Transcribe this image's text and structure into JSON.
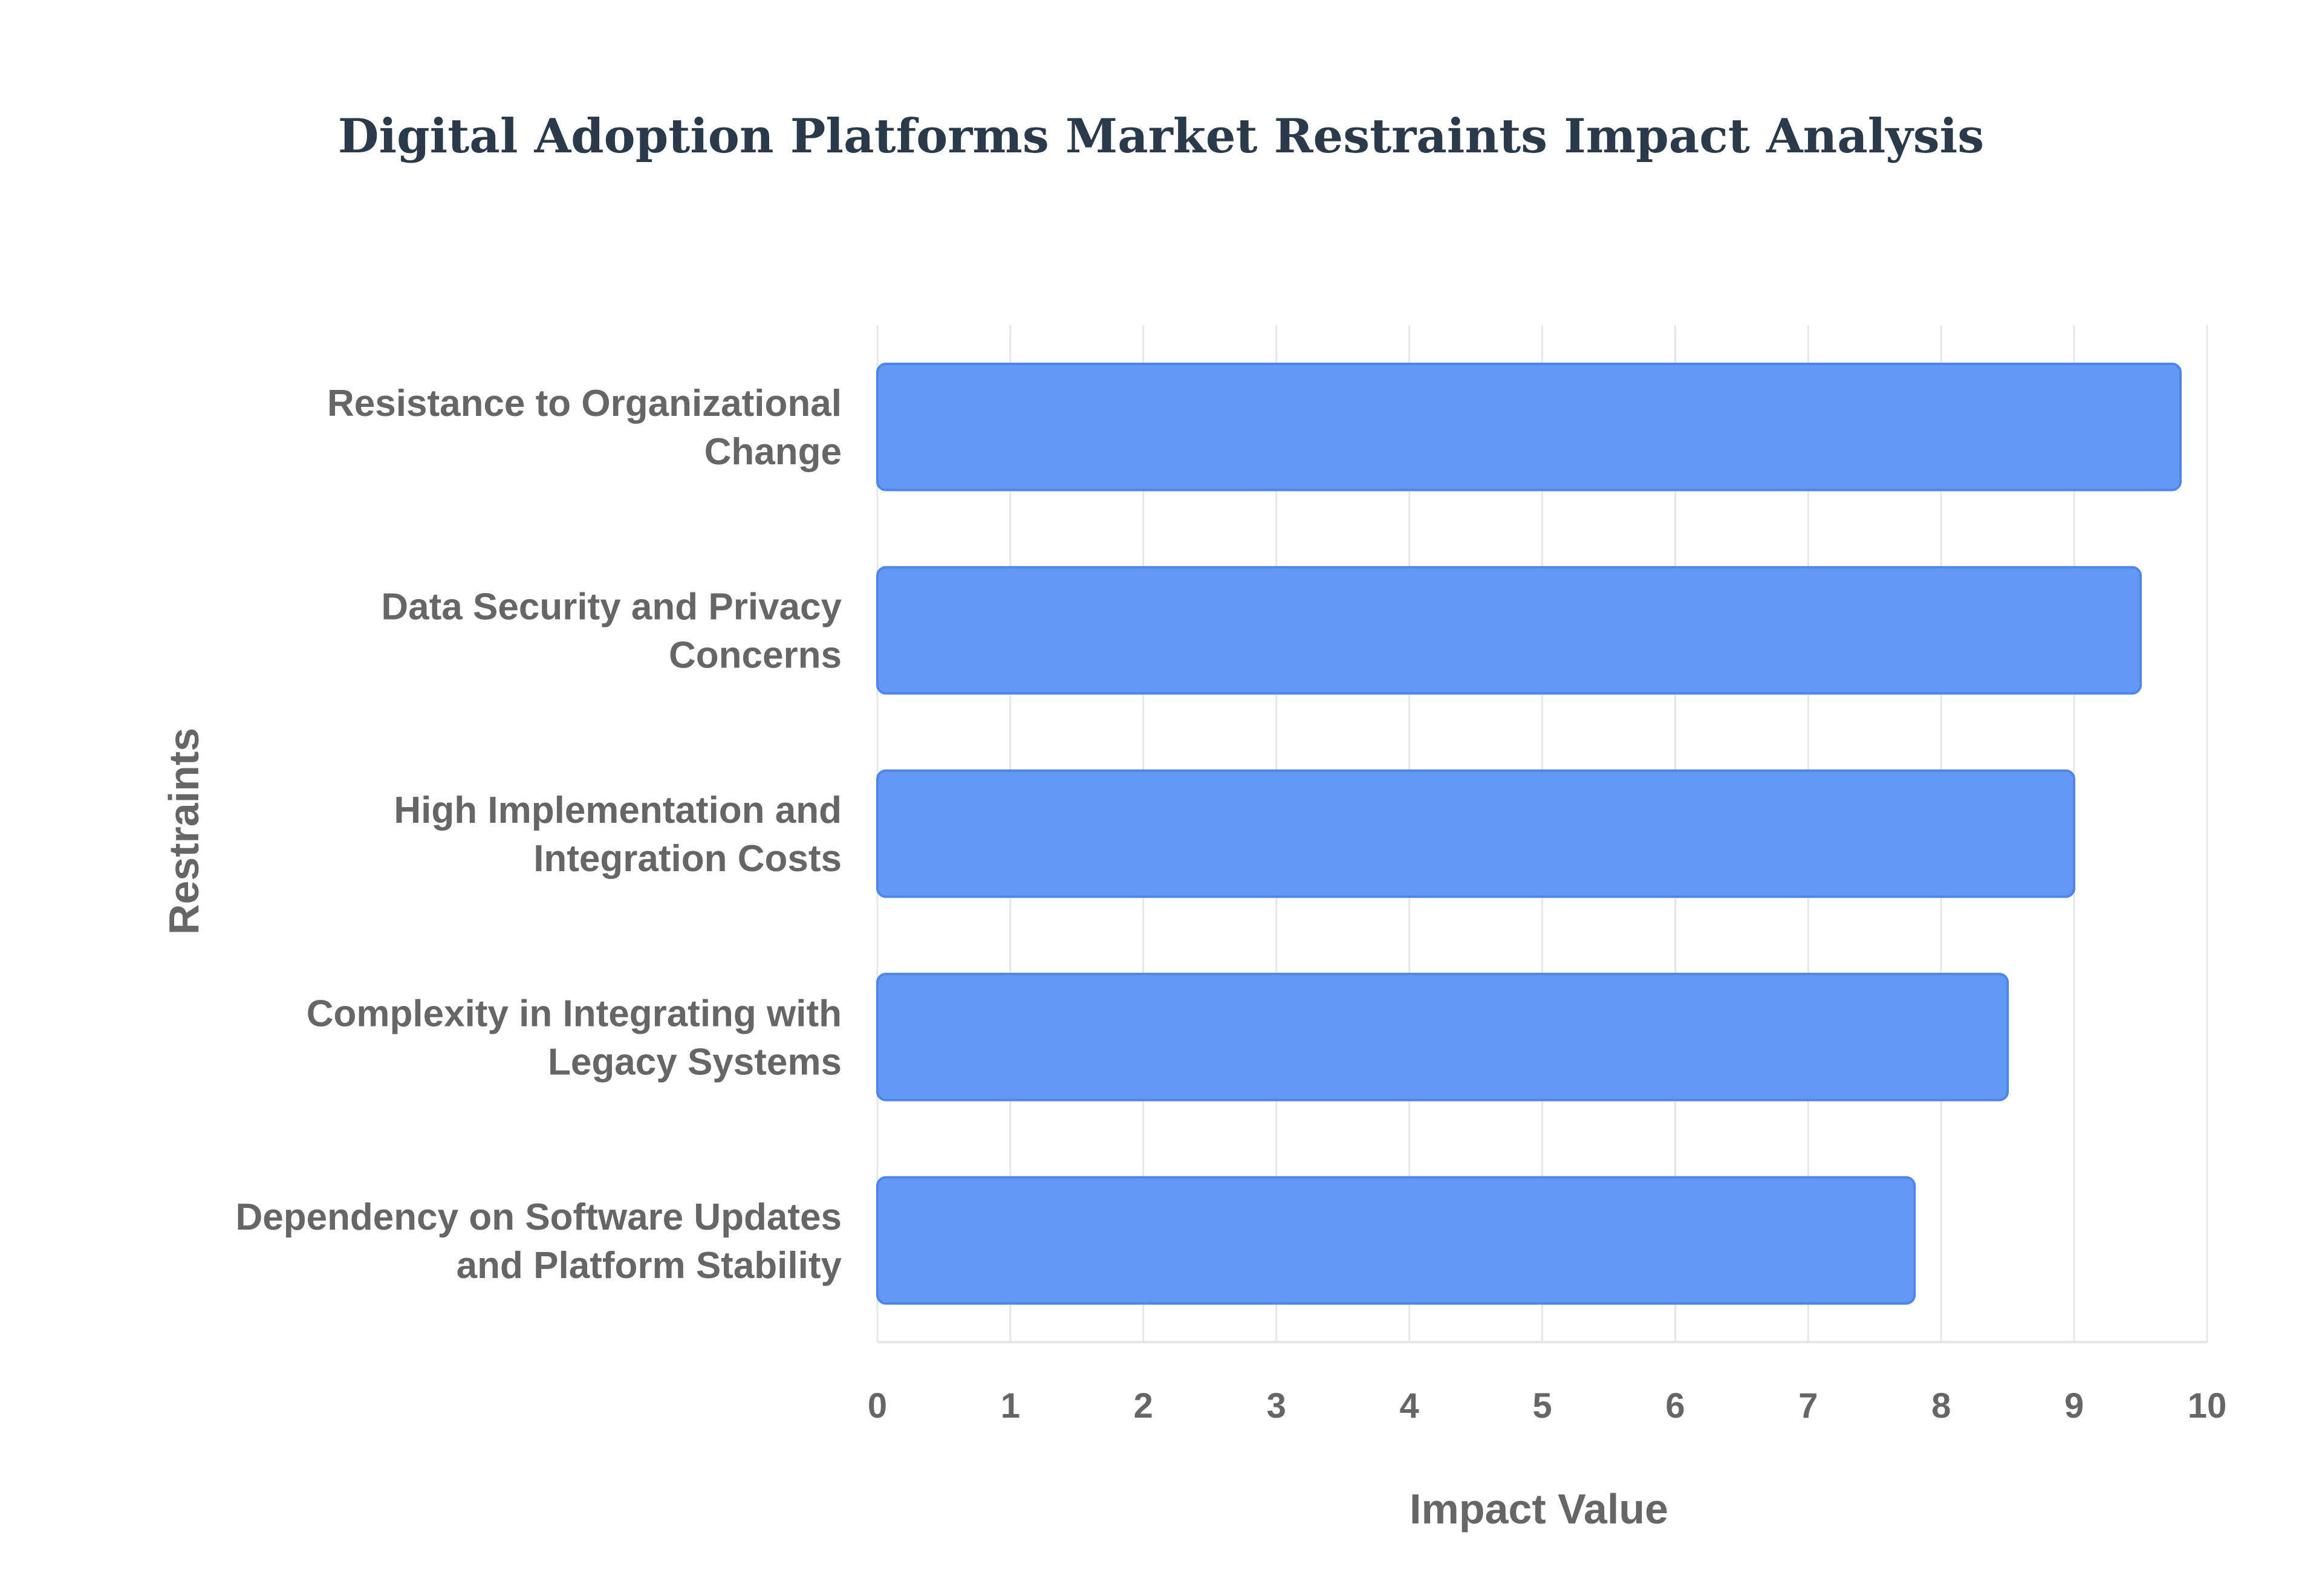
{
  "chart_data": {
    "type": "bar",
    "orientation": "horizontal",
    "title": "Digital Adoption Platforms Market Restraints Impact Analysis",
    "xlabel": "Impact Value",
    "ylabel": "Restraints",
    "categories": [
      [
        "Resistance to Organizational",
        "Change"
      ],
      [
        "Data Security and Privacy",
        "Concerns"
      ],
      [
        "High Implementation and",
        "Integration Costs"
      ],
      [
        "Complexity in Integrating with",
        "Legacy Systems"
      ],
      [
        "Dependency on Software Updates",
        "and Platform Stability"
      ]
    ],
    "values": [
      9.8,
      9.5,
      9.0,
      8.5,
      7.8
    ],
    "xlim": [
      0,
      10
    ],
    "xticks": [
      "0",
      "1",
      "2",
      "3",
      "4",
      "5",
      "6",
      "7",
      "8",
      "9",
      "10"
    ],
    "grid": true,
    "bar_color": "#6399f5",
    "bar_border_color": "#4f86ee"
  }
}
